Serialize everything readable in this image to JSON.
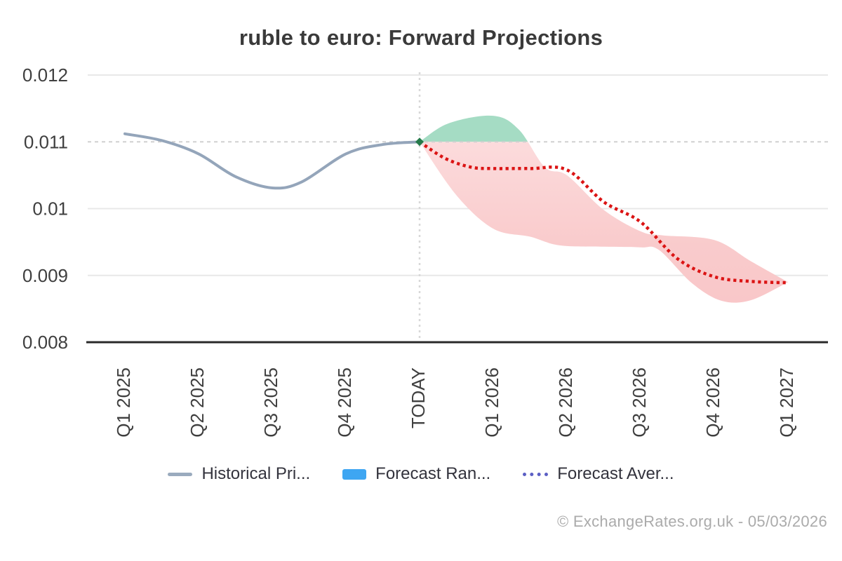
{
  "title": "ruble to euro: Forward Projections",
  "watermark": "© ExchangeRates.org.uk - 05/03/2026",
  "legend": {
    "items": [
      {
        "label": "Historical Pri...",
        "swatch": "line"
      },
      {
        "label": "Forecast Ran...",
        "swatch": "rect"
      },
      {
        "label": "Forecast Aver...",
        "swatch": "dots"
      }
    ]
  },
  "colors": {
    "historical_line": "#94a5ba",
    "forecast_band_above": "#a5dcc4",
    "forecast_band_below_top": "#fcdbdc",
    "forecast_band_below_mid": "#f9cbcc",
    "forecast_band_below_bottom": "#f9c5c7",
    "forecast_average_line": "#db1414",
    "legend_range_swatch": "#3ea6f2",
    "legend_average_swatch": "#5b5fc4",
    "grid_line": "#e8e8e8",
    "reference_dash": "#d0d0d0",
    "today_line": "#d8d8d8",
    "axis_line": "#2a2a2a",
    "today_marker": "#257a4a",
    "tick_text": "#3f3f3f",
    "watermark_text": "#ababab"
  },
  "chart_data": {
    "type": "line",
    "title": "ruble to euro: Forward Projections",
    "categories": [
      "Q1 2025",
      "Q2 2025",
      "Q3 2025",
      "Q4 2025",
      "TODAY",
      "Q1 2026",
      "Q2 2026",
      "Q3 2026",
      "Q4 2026",
      "Q1 2027"
    ],
    "today_index": 4,
    "ylim": [
      0.008,
      0.012
    ],
    "reference_value": 0.011,
    "legend_position": "bottom",
    "grid": true,
    "y_ticks": [
      {
        "label": "0.012",
        "value": 0.012,
        "style": "solid"
      },
      {
        "label": "0.011",
        "value": 0.011,
        "style": "dashed"
      },
      {
        "label": "0.01",
        "value": 0.01,
        "style": "solid"
      },
      {
        "label": "0.009",
        "value": 0.009,
        "style": "solid"
      },
      {
        "label": "0.008",
        "value": 0.008,
        "style": "axis"
      }
    ],
    "series": [
      {
        "name": "Historical Price",
        "role": "historical",
        "points": [
          [
            0,
            0.01112
          ],
          [
            0.5,
            0.01102
          ],
          [
            1,
            0.01082
          ],
          [
            1.5,
            0.01048
          ],
          [
            2,
            0.01031
          ],
          [
            2.4,
            0.0104
          ],
          [
            3,
            0.01082
          ],
          [
            3.5,
            0.01096
          ],
          [
            4,
            0.011
          ]
        ]
      },
      {
        "name": "Forecast Average",
        "role": "average",
        "points": [
          [
            4,
            0.011
          ],
          [
            4.35,
            0.01075
          ],
          [
            4.7,
            0.01062
          ],
          [
            5,
            0.0106
          ],
          [
            5.5,
            0.0106
          ],
          [
            6,
            0.01058
          ],
          [
            6.5,
            0.0101
          ],
          [
            7,
            0.0098
          ],
          [
            7.5,
            0.00925
          ],
          [
            8,
            0.00898
          ],
          [
            8.5,
            0.00891
          ],
          [
            9,
            0.00889
          ]
        ]
      },
      {
        "name": "Forecast Range Upper",
        "role": "upper",
        "points": [
          [
            4,
            0.011
          ],
          [
            4.4,
            0.01128
          ],
          [
            5,
            0.01139
          ],
          [
            5.35,
            0.01118
          ],
          [
            5.7,
            0.01062
          ],
          [
            6,
            0.0105
          ],
          [
            6.5,
            0.00998
          ],
          [
            7,
            0.00966
          ],
          [
            7.3,
            0.0096
          ],
          [
            8,
            0.00953
          ],
          [
            8.5,
            0.00921
          ],
          [
            9,
            0.0089
          ]
        ]
      },
      {
        "name": "Forecast Range Lower",
        "role": "lower",
        "points": [
          [
            4,
            0.011
          ],
          [
            4.5,
            0.0102
          ],
          [
            5,
            0.0097
          ],
          [
            5.5,
            0.00958
          ],
          [
            5.9,
            0.00945
          ],
          [
            6.5,
            0.00943
          ],
          [
            7,
            0.00942
          ],
          [
            7.25,
            0.00938
          ],
          [
            7.7,
            0.00888
          ],
          [
            8.1,
            0.00862
          ],
          [
            8.5,
            0.00863
          ],
          [
            9,
            0.0089
          ]
        ]
      }
    ]
  }
}
